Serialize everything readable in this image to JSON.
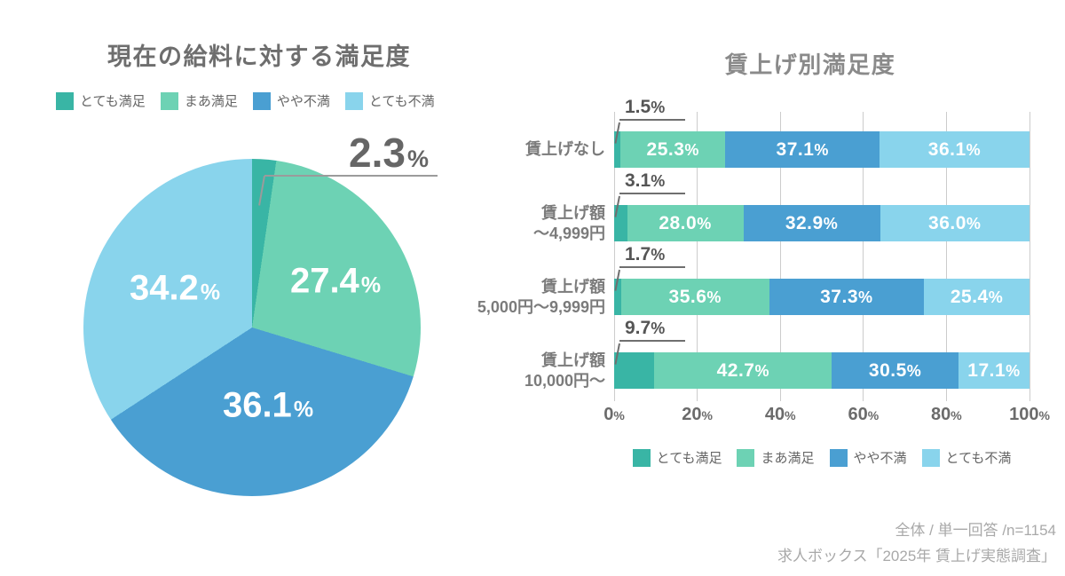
{
  "titles": {
    "pie": "現在の給料に対する満足度",
    "bars": "賃上げ別満足度"
  },
  "legend_labels": [
    "とても満足",
    "まあ満足",
    "やや不満",
    "とても不満"
  ],
  "palette": [
    "#39b5a5",
    "#6dd2b4",
    "#4a9fd2",
    "#89d4ec"
  ],
  "source": {
    "line1": "全体 / 単一回答 /n=1154",
    "line2": "求人ボックス「2025年 賃上げ実態調査」"
  },
  "style_colors": {
    "pie_title_text": "#6e6e6e",
    "bar_title_text": "#8a8a8a",
    "grid": "#cccccc",
    "category_text": "#7b7b7b",
    "annotation_text": "#555555",
    "axis_text": "#6b6b6b",
    "source_text": "#a9a9a9",
    "leader_line": "#9b9b9b",
    "background": "#ffffff"
  },
  "chart_data": [
    {
      "type": "pie",
      "title": "現在の給料に対する満足度",
      "labels": [
        "とても満足",
        "まあ満足",
        "やや不満",
        "とても不満"
      ],
      "values": [
        2.3,
        27.4,
        36.1,
        34.2
      ],
      "colors": [
        "#39b5a5",
        "#6dd2b4",
        "#4a9fd2",
        "#89d4ec"
      ],
      "unit": "%",
      "start_angle": "12-oclock",
      "direction": "clockwise",
      "legend_position": "top-left",
      "callout_segment": "とても満足"
    },
    {
      "type": "bar",
      "orientation": "horizontal-stacked",
      "title": "賃上げ別満足度",
      "categories": [
        [
          "賃上げなし"
        ],
        [
          "賃上げ額",
          "〜4,999円"
        ],
        [
          "賃上げ額",
          "5,000円〜9,999円"
        ],
        [
          "賃上げ額",
          "10,000円〜"
        ]
      ],
      "series": [
        {
          "name": "とても満足",
          "color": "#39b5a5",
          "values": [
            1.5,
            3.1,
            1.7,
            9.7
          ]
        },
        {
          "name": "まあ満足",
          "color": "#6dd2b4",
          "values": [
            25.3,
            28.0,
            35.6,
            42.7
          ]
        },
        {
          "name": "やや不満",
          "color": "#4a9fd2",
          "values": [
            37.1,
            32.9,
            37.3,
            30.5
          ]
        },
        {
          "name": "とても不満",
          "color": "#89d4ec",
          "values": [
            36.1,
            36.0,
            25.4,
            17.1
          ]
        }
      ],
      "x_ticks": [
        0,
        20,
        40,
        60,
        80,
        100
      ],
      "xlim": [
        0,
        100
      ],
      "unit": "%",
      "grid": true,
      "legend_position": "bottom",
      "annotation": "smallest segment value labeled above each bar with leader line"
    }
  ]
}
